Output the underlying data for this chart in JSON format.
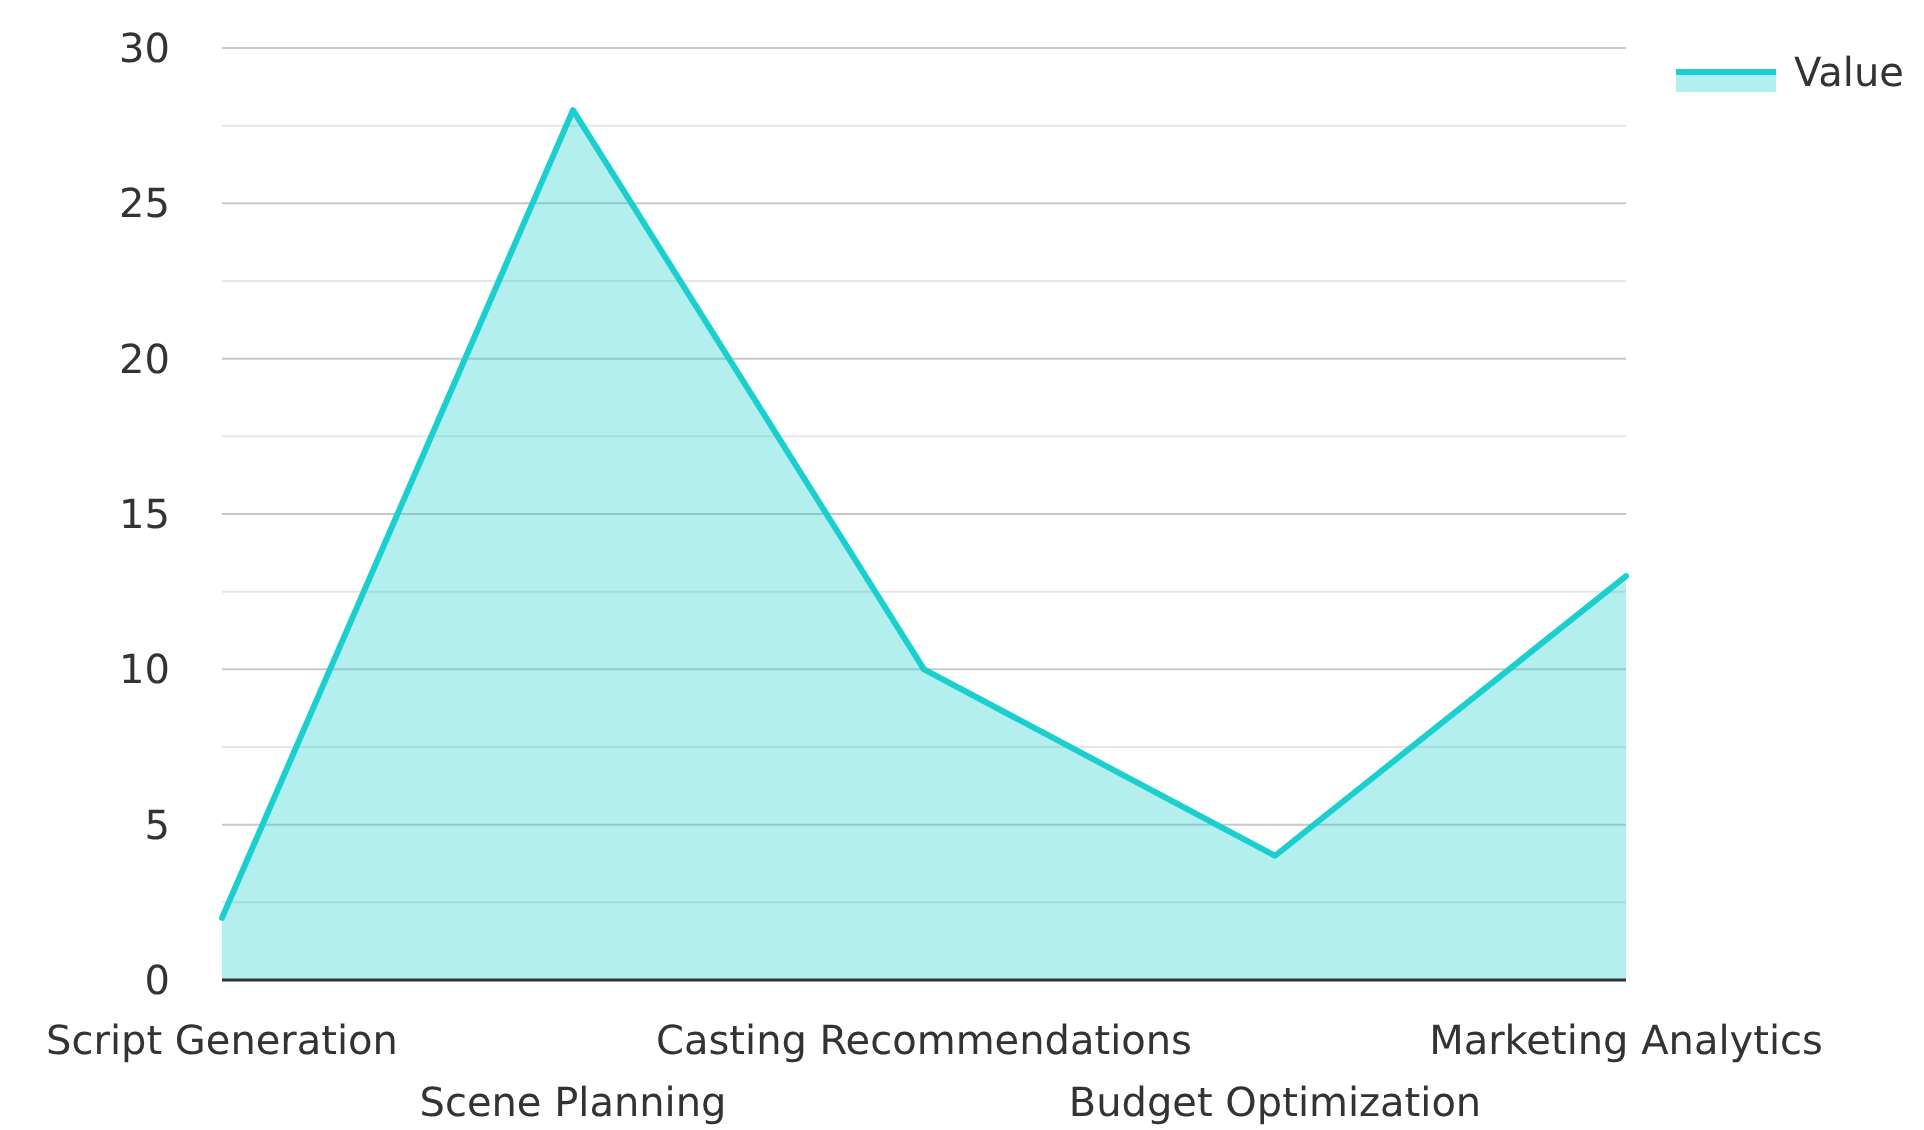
{
  "chart_data": {
    "type": "area",
    "categories": [
      "Script Generation",
      "Scene Planning",
      "Casting Recommendations",
      "Budget Optimization",
      "Marketing Analytics"
    ],
    "series": [
      {
        "name": "Value",
        "color": "#1ccfcf",
        "values": [
          2,
          28,
          10,
          4,
          13
        ]
      }
    ],
    "ylim": [
      0,
      30
    ],
    "yticks": [
      0,
      {
        "value": 2.5,
        "label": null
      },
      5,
      {
        "value": 7.5,
        "label": null
      },
      10,
      {
        "value": 12.5,
        "label": null
      },
      15,
      {
        "value": 17.5,
        "label": null
      },
      20,
      {
        "value": 22.5,
        "label": null
      },
      25,
      {
        "value": 27.5,
        "label": null
      },
      30
    ],
    "grid": "y",
    "legend": "top right"
  }
}
